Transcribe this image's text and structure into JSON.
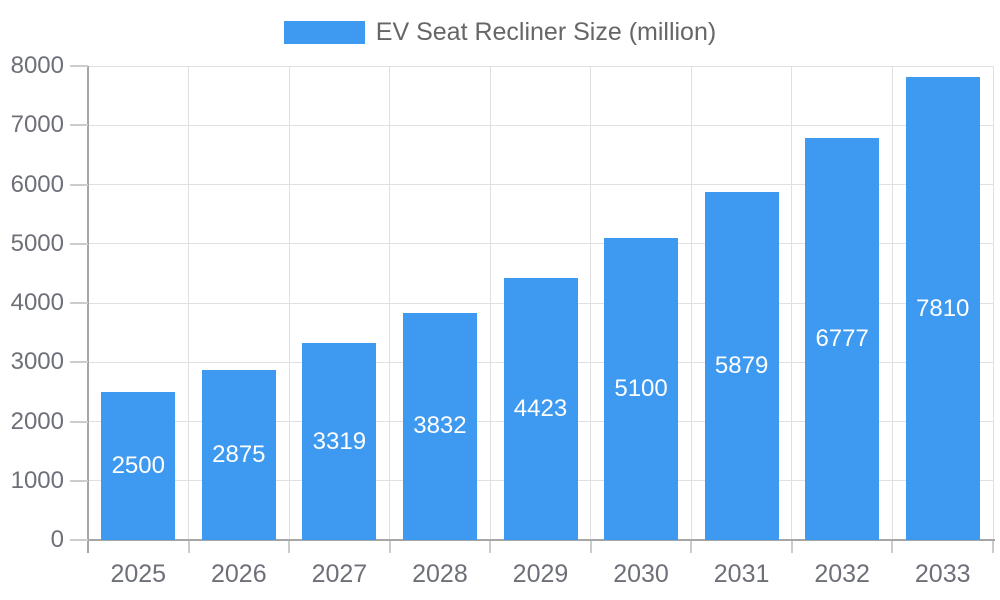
{
  "legend": {
    "label": "EV Seat Recliner Size (million)"
  },
  "colors": {
    "bar": "#3E99F0",
    "bar_label": "#FFFFFF",
    "axis_label": "#6E7079",
    "legend_label": "#666666",
    "grid_line": "#E0E0E0",
    "axis_line": "#A6A6A6",
    "tick": "#CCCCCC",
    "background": "#FFFFFF"
  },
  "chart_data": {
    "type": "bar",
    "title": "EV Seat Recliner Size (million)",
    "series_name": "EV Seat Recliner Size (million)",
    "categories": [
      "2025",
      "2026",
      "2027",
      "2028",
      "2029",
      "2030",
      "2031",
      "2032",
      "2033"
    ],
    "values": [
      2500,
      2875,
      3319,
      3832,
      4423,
      5100,
      5879,
      6777,
      7810
    ],
    "xlabel": "",
    "ylabel": "",
    "ylim": [
      0,
      8000
    ],
    "ytick_step": 1000,
    "yticks": [
      0,
      1000,
      2000,
      3000,
      4000,
      5000,
      6000,
      7000,
      8000
    ],
    "grid": true,
    "legend_position": "top-center",
    "bar_value_labels": "inside-center"
  }
}
